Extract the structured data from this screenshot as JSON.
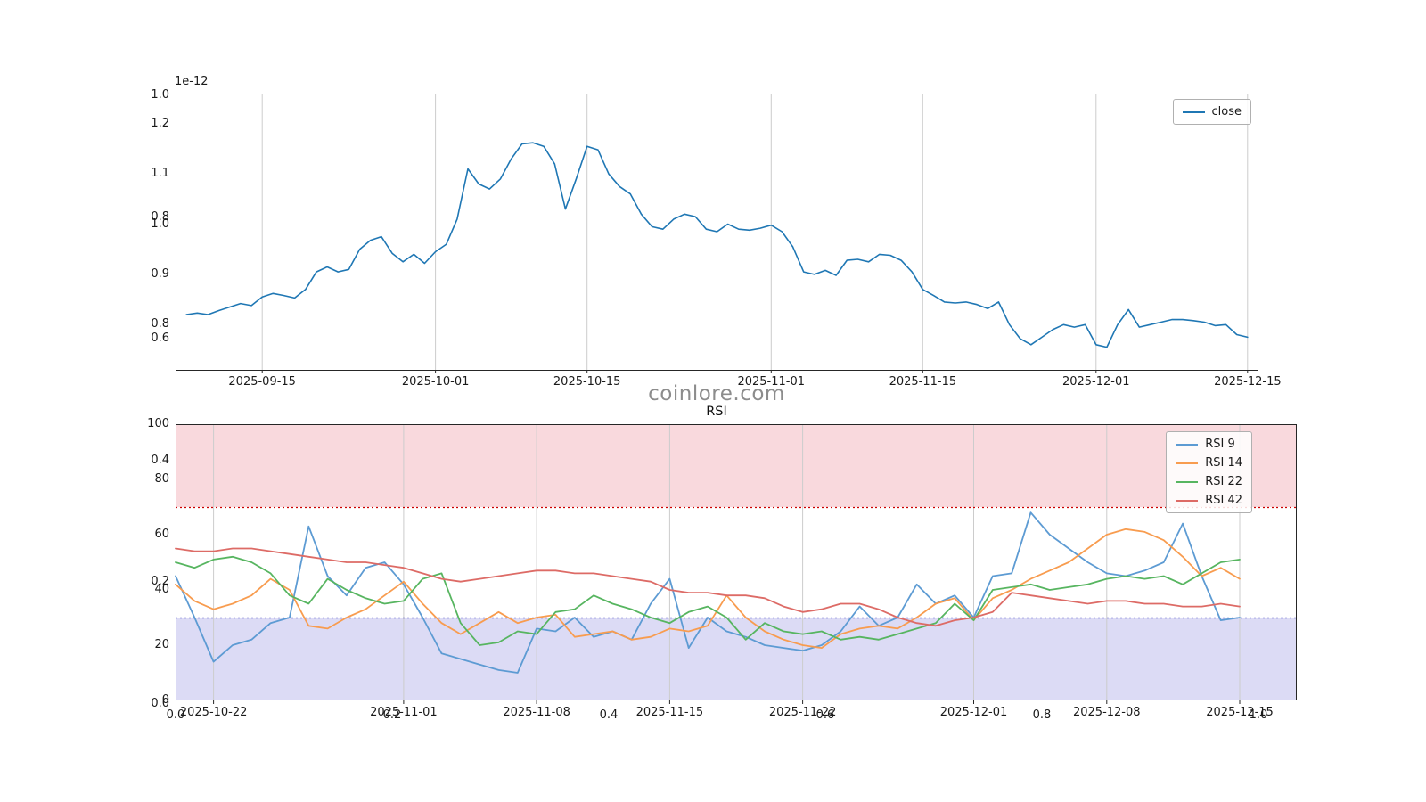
{
  "watermark": "coinlore.com",
  "stray_axis_labels": {
    "x": [
      "0.0",
      "0.2",
      "0.4",
      "0.6",
      "0.8",
      "1.0"
    ],
    "y": [
      "1.0",
      "0.8",
      "0.6",
      "0.4",
      "0.2",
      "0.0"
    ]
  },
  "chart_data": [
    {
      "id": "price",
      "type": "line",
      "title": "",
      "offset_text": "1e-12",
      "x_start": "2025-09-08",
      "xlim": [
        "2025-09-07",
        "2025-12-16"
      ],
      "ylim": [
        0.71,
        1.26
      ],
      "x_ticks": [
        "2025-09-15",
        "2025-10-01",
        "2025-10-15",
        "2025-11-01",
        "2025-11-15",
        "2025-12-01",
        "2025-12-15"
      ],
      "y_ticks": [
        "1.2",
        "1.1",
        "1.0",
        "0.9",
        "0.8"
      ],
      "grid": "vertical",
      "legend_position": "upper-right",
      "series": [
        {
          "name": "close",
          "color": "#1f77b4",
          "values": [
            0.82,
            0.823,
            0.82,
            0.828,
            0.835,
            0.842,
            0.838,
            0.855,
            0.862,
            0.858,
            0.853,
            0.87,
            0.905,
            0.915,
            0.905,
            0.91,
            0.95,
            0.968,
            0.975,
            0.942,
            0.925,
            0.94,
            0.922,
            0.945,
            0.96,
            1.01,
            1.11,
            1.08,
            1.07,
            1.09,
            1.13,
            1.16,
            1.162,
            1.155,
            1.12,
            1.03,
            1.09,
            1.155,
            1.148,
            1.1,
            1.075,
            1.06,
            1.02,
            0.995,
            0.99,
            1.01,
            1.02,
            1.015,
            0.99,
            0.985,
            1.0,
            0.99,
            0.988,
            0.992,
            0.998,
            0.985,
            0.955,
            0.905,
            0.9,
            0.908,
            0.898,
            0.928,
            0.93,
            0.925,
            0.94,
            0.938,
            0.928,
            0.905,
            0.87,
            0.858,
            0.845,
            0.843,
            0.845,
            0.84,
            0.832,
            0.845,
            0.8,
            0.772,
            0.76,
            0.775,
            0.79,
            0.8,
            0.795,
            0.8,
            0.76,
            0.755,
            0.8,
            0.83,
            0.795,
            0.8,
            0.805,
            0.81,
            0.81,
            0.808,
            0.805,
            0.798,
            0.8,
            0.78,
            0.775
          ]
        }
      ]
    },
    {
      "id": "rsi",
      "type": "line",
      "title": "RSI",
      "x_start": "2025-10-20",
      "xlim": [
        "2025-10-20",
        "2025-12-18"
      ],
      "ylim": [
        0,
        100
      ],
      "x_ticks": [
        "2025-10-22",
        "2025-11-01",
        "2025-11-08",
        "2025-11-15",
        "2025-11-22",
        "2025-12-01",
        "2025-12-08",
        "2025-12-15"
      ],
      "y_ticks": [
        "100",
        "80",
        "60",
        "40",
        "20",
        "0"
      ],
      "grid": "vertical",
      "legend_position": "upper-right",
      "bands": [
        {
          "name": "overbought-zone",
          "from": 70,
          "to": 100,
          "color": "#f9d9dd"
        },
        {
          "name": "oversold-zone",
          "from": 0,
          "to": 30,
          "color": "#dcdbf5"
        }
      ],
      "threshold_lines": [
        {
          "value": 70,
          "color": "#cc0000"
        },
        {
          "value": 30,
          "color": "#0000aa"
        }
      ],
      "series": [
        {
          "name": "RSI 9",
          "color": "#5d9bd3",
          "values": [
            45,
            30,
            14,
            20,
            22,
            28,
            30,
            63,
            45,
            38,
            48,
            50,
            42,
            30,
            17,
            15,
            13,
            11,
            10,
            26,
            25,
            30,
            23,
            25,
            22,
            35,
            44,
            19,
            30,
            25,
            23,
            20,
            19,
            18,
            20,
            25,
            34,
            27,
            30,
            42,
            35,
            38,
            30,
            45,
            46,
            68,
            60,
            55,
            50,
            46,
            45,
            47,
            50,
            64,
            45,
            29,
            30
          ]
        },
        {
          "name": "RSI 14",
          "color": "#f89c4f",
          "values": [
            42,
            36,
            33,
            35,
            38,
            44,
            40,
            27,
            26,
            30,
            33,
            38,
            43,
            35,
            28,
            24,
            28,
            32,
            28,
            30,
            31,
            23,
            24,
            25,
            22,
            23,
            26,
            25,
            27,
            38,
            30,
            25,
            22,
            20,
            19,
            24,
            26,
            27,
            26,
            30,
            35,
            37,
            29,
            37,
            40,
            44,
            47,
            50,
            55,
            60,
            62,
            61,
            58,
            52,
            45,
            48,
            44
          ]
        },
        {
          "name": "RSI 22",
          "color": "#57b560",
          "values": [
            50,
            48,
            51,
            52,
            50,
            46,
            38,
            35,
            44,
            40,
            37,
            35,
            36,
            44,
            46,
            28,
            20,
            21,
            25,
            24,
            32,
            33,
            38,
            35,
            33,
            30,
            28,
            32,
            34,
            30,
            22,
            28,
            25,
            24,
            25,
            22,
            23,
            22,
            24,
            26,
            28,
            35,
            29,
            40,
            41,
            42,
            40,
            41,
            42,
            44,
            45,
            44,
            45,
            42,
            46,
            50,
            51
          ]
        },
        {
          "name": "RSI 42",
          "color": "#dd6b66",
          "values": [
            55,
            54,
            54,
            55,
            55,
            54,
            53,
            52,
            51,
            50,
            50,
            49,
            48,
            46,
            44,
            43,
            44,
            45,
            46,
            47,
            47,
            46,
            46,
            45,
            44,
            43,
            40,
            39,
            39,
            38,
            38,
            37,
            34,
            32,
            33,
            35,
            35,
            33,
            30,
            28,
            27,
            29,
            30,
            32,
            39,
            38,
            37,
            36,
            35,
            36,
            36,
            35,
            35,
            34,
            34,
            35,
            34
          ]
        }
      ]
    }
  ]
}
